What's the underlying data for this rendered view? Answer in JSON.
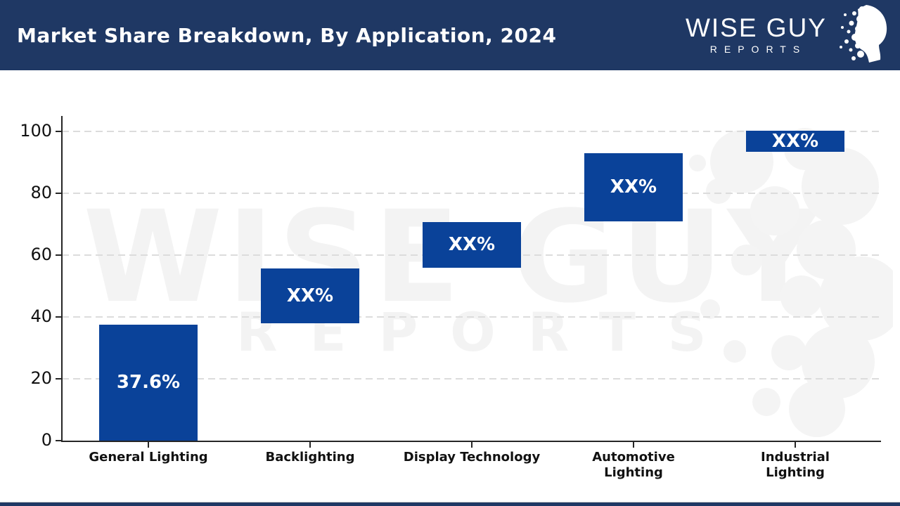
{
  "colors": {
    "header_bg": "#1f3864",
    "bar": "#0a4299",
    "bar_label": "#ffffff",
    "axis": "#262626",
    "gridline": "#dcdcdc",
    "watermark": "#f3f3f3"
  },
  "header": {
    "title": "Market Share Breakdown, By Application, 2024",
    "logo_line1": "WISE GUY",
    "logo_line2": "REPORTS"
  },
  "watermark": {
    "line1": "WISE GUY",
    "line2": "REPORTS"
  },
  "chart_data": {
    "type": "bar",
    "subtype": "floating-waterfall",
    "title": "Market Share Breakdown, By Application, 2024",
    "categories": [
      "General Lighting",
      "Backlighting",
      "Display Technology",
      "Automotive\nLighting",
      "Industrial\nLighting"
    ],
    "series": [
      {
        "name": "Market share (%)",
        "segments": [
          {
            "category": "General Lighting",
            "start": 0,
            "end": 37.6,
            "label": "37.6%"
          },
          {
            "category": "Backlighting",
            "start": 38.0,
            "end": 55.6,
            "label": "XX%"
          },
          {
            "category": "Display Technology",
            "start": 55.9,
            "end": 70.7,
            "label": "XX%"
          },
          {
            "category": "Automotive Lighting",
            "start": 71.0,
            "end": 93.0,
            "label": "XX%"
          },
          {
            "category": "Industrial Lighting",
            "start": 93.3,
            "end": 100.3,
            "label": "XX%"
          }
        ]
      }
    ],
    "xlabel": "",
    "ylabel": "",
    "ylim": [
      0,
      105
    ],
    "yticks": [
      0,
      20,
      40,
      60,
      80,
      100
    ],
    "grid": "horizontal-dashed",
    "legend": "none"
  }
}
